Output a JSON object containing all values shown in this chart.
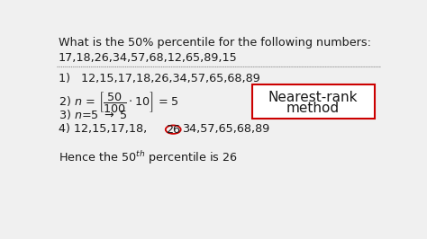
{
  "bg_color": "#f0f0f0",
  "text_color": "#1a1a1a",
  "line1": "What is the 50% percentile for the following numbers:",
  "line2": "17,18,26,34,57,68,12,65,89,15",
  "step1": "1)   12,15,17,18,26,34,57,65,68,89",
  "box_label1": "Nearest-rank",
  "box_label2": "method",
  "box_color": "#ffffff",
  "box_border": "#cc0000",
  "circle_color": "#cc0000"
}
